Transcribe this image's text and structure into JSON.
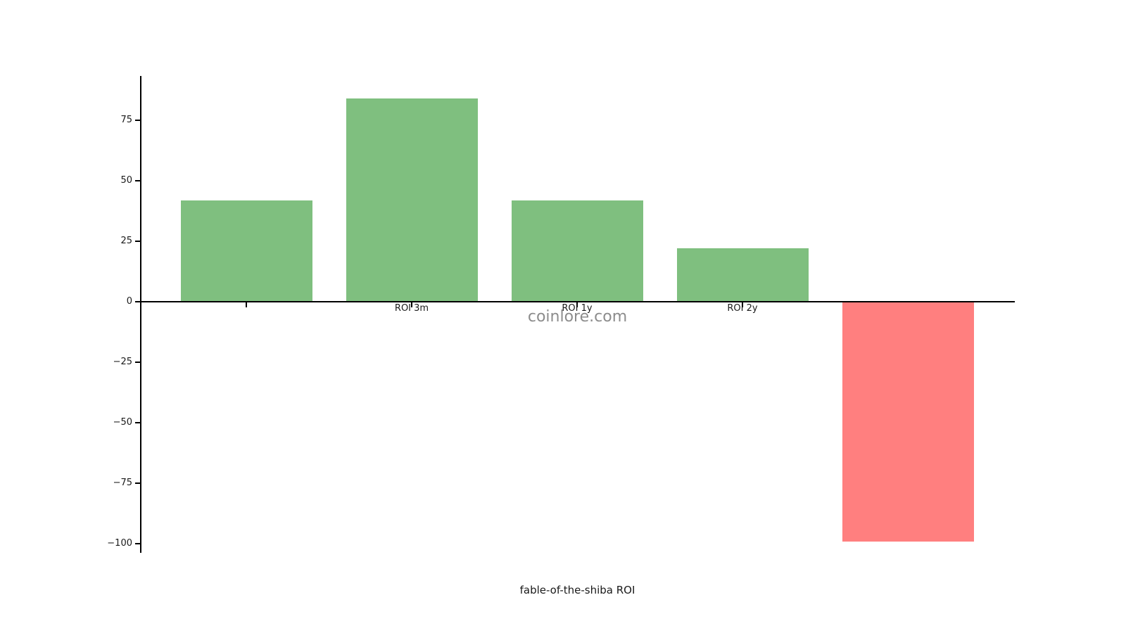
{
  "chart": {
    "title": "fable-of-the-shiba ROI",
    "watermark": "coinlore.com"
  },
  "chart_data": {
    "type": "bar",
    "title": "fable-of-the-shiba ROI",
    "watermark": "coinlore.com",
    "categories": [
      "",
      "ROI 3m",
      "ROI 1y",
      "ROI 2y",
      ""
    ],
    "values": [
      42,
      84,
      42,
      22,
      -99
    ],
    "xlabel": "",
    "ylabel": "",
    "yticks": [
      75,
      50,
      25,
      0,
      -25,
      -50,
      -75,
      -100
    ],
    "ylim": [
      -104,
      93
    ],
    "grid": false,
    "legend": null,
    "positive_color": "#7fbf7f",
    "negative_color": "#ff7f7f",
    "axis_color": "#000000",
    "tick_label_color": "#1a1a1a",
    "watermark_color": "#8c8c8c"
  }
}
